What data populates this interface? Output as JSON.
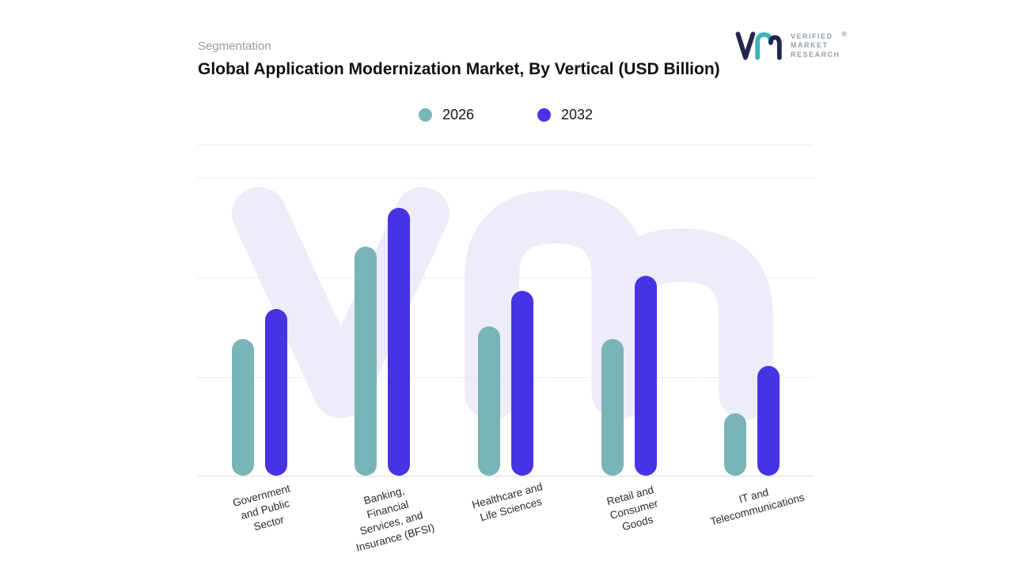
{
  "header": {
    "eyebrow": "Segmentation",
    "title": "Global Application Modernization Market, By Vertical (USD Billion)"
  },
  "logo": {
    "line1": "VERIFIED",
    "line2": "MARKET",
    "line3": "RESEARCH",
    "registered": "®"
  },
  "chart_data": {
    "type": "bar",
    "title": "Global Application Modernization Market, By Vertical (USD Billion)",
    "categories": [
      "Government and Public Sector",
      "Banking, Financial Services, and Insurance (BFSI)",
      "Healthcare and Life Sciences",
      "Retail and Consumer Goods",
      "IT and Telecommunications"
    ],
    "tick_labels": [
      "Government\nand Public\nSector",
      "Banking,\nFinancial\nServices, and\nInsurance (BFSI)",
      "Healthcare and\nLife Sciences",
      "Retail and\nConsumer\nGoods",
      "IT and\nTelecommunications"
    ],
    "series": [
      {
        "name": "2026",
        "color": "#79b4b6",
        "values": [
          46,
          77,
          50,
          46,
          21
        ]
      },
      {
        "name": "2032",
        "color": "#4733e4",
        "values": [
          56,
          90,
          62,
          67,
          37
        ]
      }
    ],
    "xlabel": "",
    "ylabel": "",
    "ylim": [
      0,
      100
    ],
    "y_axis_labels_visible": false,
    "grid": "horizontal dashed",
    "legend_position": "top center",
    "watermark": "vm",
    "colors": {
      "watermark": "#ededfa",
      "gridline": "#e4e4ef",
      "axis_line": "#dcdce4"
    }
  }
}
